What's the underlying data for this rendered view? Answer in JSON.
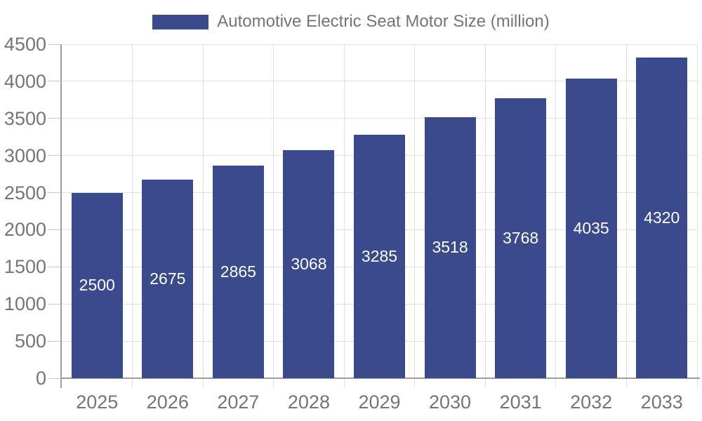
{
  "legend": {
    "label": "Automotive Electric Seat Motor Size (million)"
  },
  "chart_data": {
    "type": "bar",
    "title": "Automotive Electric Seat Motor Size (million)",
    "categories": [
      "2025",
      "2026",
      "2027",
      "2028",
      "2029",
      "2030",
      "2031",
      "2032",
      "2033"
    ],
    "values": [
      2500,
      2675,
      2865,
      3068,
      3285,
      3518,
      3768,
      4035,
      4320
    ],
    "value_labels": [
      "2500",
      "2675",
      "2865",
      "3068",
      "3285",
      "3518",
      "3768",
      "4035",
      "4320"
    ],
    "xlabel": "",
    "ylabel": "",
    "ylim": [
      0,
      4500
    ],
    "ytick_step": 500,
    "ytick_labels": [
      "0",
      "500",
      "1000",
      "1500",
      "2000",
      "2500",
      "3000",
      "3500",
      "4000",
      "4500"
    ],
    "grid": true,
    "legend_position": "top",
    "colors": {
      "bar": "#3A4A8C",
      "bar_label": "#FFFFFF",
      "axis_text": "#757575",
      "legend_text": "#757575",
      "grid_line": "#E0E0E0",
      "tick_line": "#C8C8C8",
      "axis_line": "#9E9E9E",
      "background": "#FFFFFF"
    }
  }
}
